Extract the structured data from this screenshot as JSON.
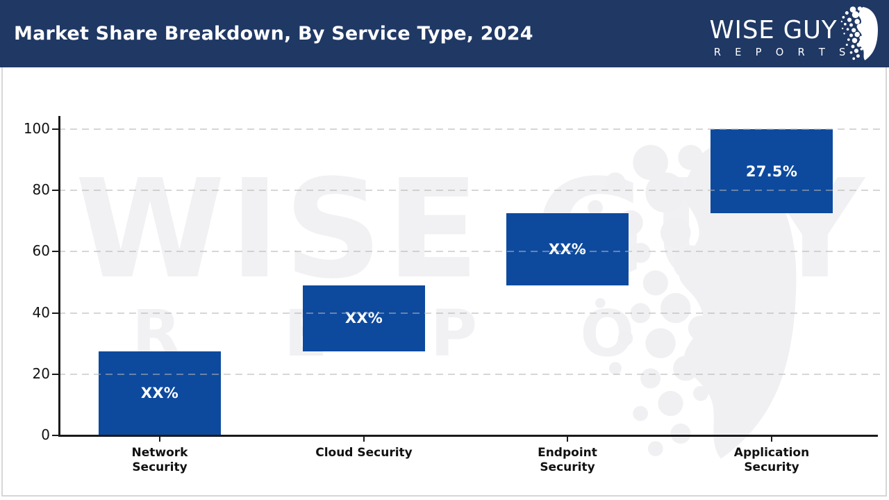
{
  "header": {
    "title": "Market Share Breakdown, By Service Type, 2024",
    "logo": {
      "name": "WISE GUY",
      "tagline": "R E P O R T S"
    }
  },
  "watermark": {
    "name": "WISE GUY",
    "tagline": "R E P O R T S"
  },
  "colors": {
    "header_bg": "#1f3864",
    "bar": "#0d4a9e",
    "axis": "#1a1a1a",
    "grid_dash": "#d9d9d9",
    "watermark": "#f1f1f4",
    "bar_label": "#ffffff"
  },
  "chart_data": {
    "type": "bar",
    "subtype": "waterfall",
    "title": "Market Share Breakdown, By Service Type, 2024",
    "xlabel": "",
    "ylabel": "",
    "ylim": [
      0,
      100
    ],
    "yticks": [
      0,
      20,
      40,
      60,
      80,
      100
    ],
    "grid": "horizontal-dashed",
    "legend": "none",
    "categories": [
      "Network Security",
      "Cloud Security",
      "Endpoint Security",
      "Application Security"
    ],
    "segments": [
      {
        "category": "Network Security",
        "start": 0,
        "end": 27.5,
        "value": 27.5,
        "label": "XX%"
      },
      {
        "category": "Cloud Security",
        "start": 27.5,
        "end": 49,
        "value": 21.5,
        "label": "XX%"
      },
      {
        "category": "Endpoint Security",
        "start": 49,
        "end": 72.5,
        "value": 23.5,
        "label": "XX%"
      },
      {
        "category": "Application Security",
        "start": 72.5,
        "end": 100,
        "value": 27.5,
        "label": "27.5%"
      }
    ]
  }
}
